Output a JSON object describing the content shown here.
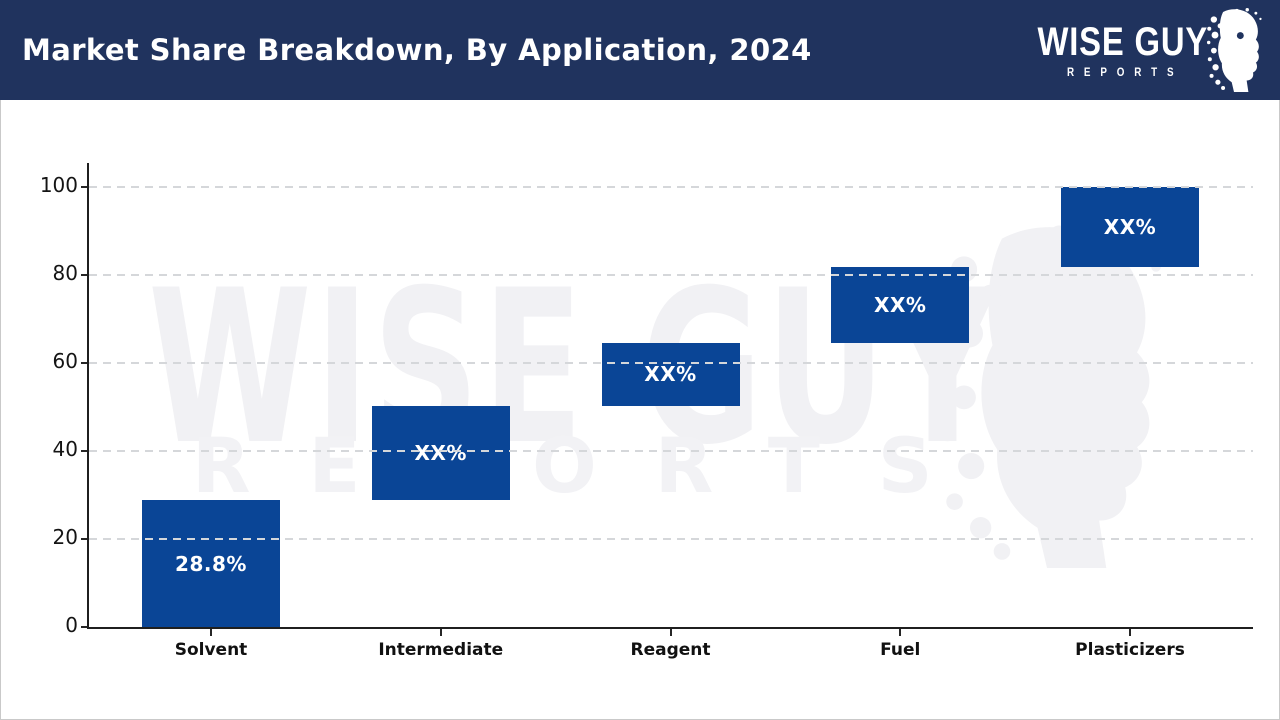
{
  "header": {
    "title": "Market Share Breakdown, By Application, 2024",
    "logo": {
      "wordmark": "WISE GUY",
      "sub": "REPORTS"
    }
  },
  "watermark": {
    "wordmark": "WISE GUY",
    "sub": "REPORTS"
  },
  "colors": {
    "header_bg": "#20335e",
    "bar_blue": "#0a4596",
    "grid": "#d5d7da",
    "axis": "#1f1f1f",
    "watermark": "#f1f1f4",
    "bar_label": "#ffffff"
  },
  "chart_data": {
    "type": "bar",
    "variant": "waterfall",
    "title": "Market Share Breakdown, By Application, 2024",
    "categories": [
      "Solvent",
      "Intermediate",
      "Reagent",
      "Fuel",
      "Plasticizers"
    ],
    "segments": [
      {
        "category": "Solvent",
        "start": 0,
        "end": 28.8,
        "label": "28.8%"
      },
      {
        "category": "Intermediate",
        "start": 28.8,
        "end": 50.3,
        "label": "XX%"
      },
      {
        "category": "Reagent",
        "start": 50.3,
        "end": 64.5,
        "label": "XX%"
      },
      {
        "category": "Fuel",
        "start": 64.5,
        "end": 81.9,
        "label": "XX%"
      },
      {
        "category": "Plasticizers",
        "start": 81.9,
        "end": 100,
        "label": "XX%"
      }
    ],
    "yticks": [
      0,
      20,
      40,
      60,
      80,
      100
    ],
    "ylim": [
      0,
      105
    ],
    "xlabel": "",
    "ylabel": "",
    "grid": "dashed-horizontal",
    "legend": "none",
    "bar_color": "#0a4596",
    "value_label_color": "#ffffff"
  }
}
